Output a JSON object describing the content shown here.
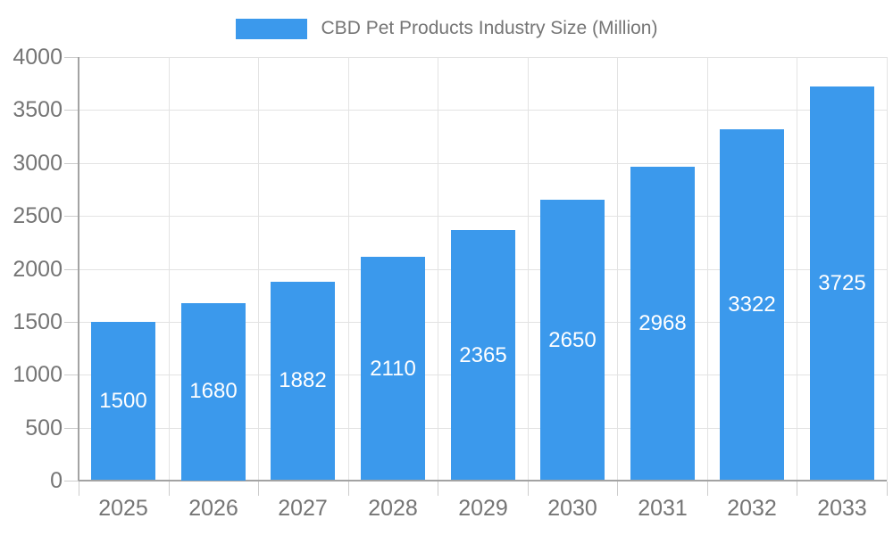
{
  "legend": {
    "label": "CBD Pet Products Industry Size (Million)"
  },
  "colors": {
    "bar": "#3B99EC",
    "grid": "#E3E3E3",
    "axis": "#A3A3A3",
    "tick": "#CCCCCC",
    "tick_label": "#757575",
    "bar_label": "#FFFFFF"
  },
  "chart_data": {
    "type": "bar",
    "title": "CBD Pet Products Industry Size (Million)",
    "categories": [
      "2025",
      "2026",
      "2027",
      "2028",
      "2029",
      "2030",
      "2031",
      "2032",
      "2033"
    ],
    "values": [
      1500,
      1680,
      1882,
      2110,
      2365,
      2650,
      2968,
      3322,
      3725
    ],
    "xlabel": "",
    "ylabel": "",
    "ylim": [
      0,
      4000
    ],
    "yticks": [
      0,
      500,
      1000,
      1500,
      2000,
      2500,
      3000,
      3500,
      4000
    ],
    "grid": true,
    "legend_position": "top",
    "bar_value_labels": "inside-center"
  }
}
